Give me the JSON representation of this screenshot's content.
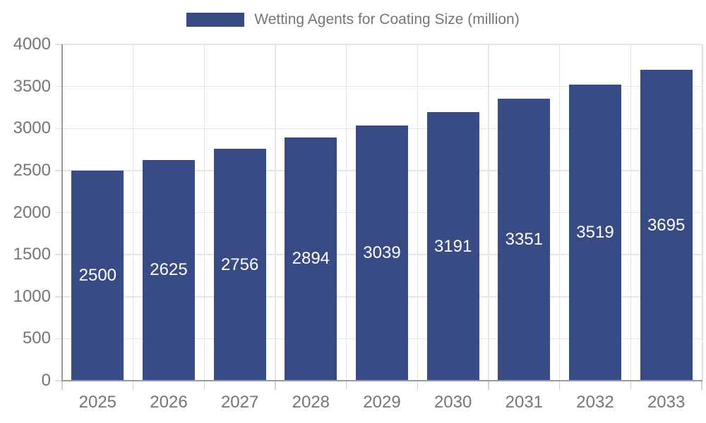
{
  "chart_data": {
    "type": "bar",
    "legend_label": "Wetting Agents for Coating Size (million)",
    "categories": [
      "2025",
      "2026",
      "2027",
      "2028",
      "2029",
      "2030",
      "2031",
      "2032",
      "2033"
    ],
    "values": [
      2500,
      2625,
      2756,
      2894,
      3039,
      3191,
      3351,
      3519,
      3695
    ],
    "ylim": [
      0,
      4000
    ],
    "yticks": [
      0,
      500,
      1000,
      1500,
      2000,
      2500,
      3000,
      3500,
      4000
    ],
    "grid": true,
    "legend_position": "top",
    "colors": {
      "bar": "#384b85",
      "bar_label": "#ffffff",
      "axis_text": "#757575",
      "legend_text": "#757575",
      "gridline": "#e6e6e6",
      "axis_line": "#9b9b9b"
    }
  }
}
